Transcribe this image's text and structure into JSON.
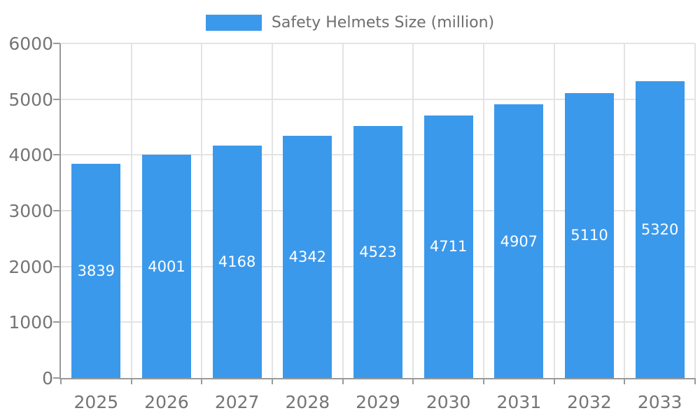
{
  "legend": {
    "label": "Safety Helmets Size (million)"
  },
  "colors": {
    "bar": "#3B99EC",
    "axis": "#999999",
    "grid": "#E3E3E3",
    "tick_text": "#757575",
    "value_text": "#FFFFFF",
    "background": "#FFFFFF"
  },
  "chart_data": {
    "type": "bar",
    "title": "Safety Helmets Size (million)",
    "categories": [
      "2025",
      "2026",
      "2027",
      "2028",
      "2029",
      "2030",
      "2031",
      "2032",
      "2033"
    ],
    "values": [
      3839,
      4001,
      4168,
      4342,
      4523,
      4711,
      4907,
      5110,
      5320
    ],
    "xlabel": "",
    "ylabel": "",
    "ylim": [
      0,
      6000
    ],
    "yticks": [
      0,
      1000,
      2000,
      3000,
      4000,
      5000,
      6000
    ],
    "grid": true,
    "legend_position": "top",
    "value_labels": "inside-center"
  }
}
